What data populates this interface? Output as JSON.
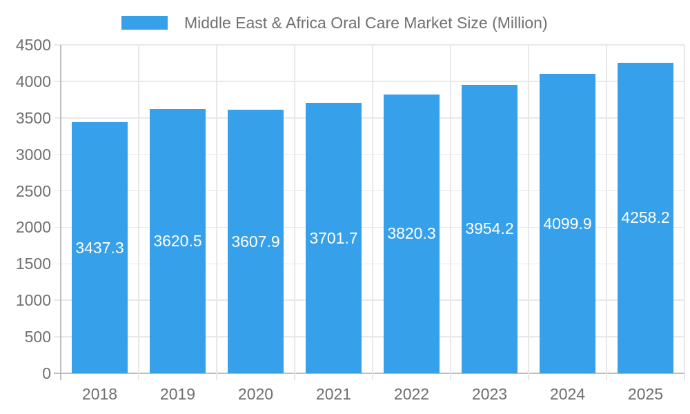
{
  "legend": {
    "label": "Middle East & Africa Oral Care Market Size (Million)"
  },
  "colors": {
    "bar": "#36A0EB",
    "grid": "#E8E8E8",
    "zero_line": "#BDBDBD",
    "tick_label": "#707070",
    "value_label": "#FFFFFF",
    "background": "#FFFFFF"
  },
  "chart_data": {
    "type": "bar",
    "title": "Middle East & Africa Oral Care Market Size (Million)",
    "categories": [
      "2018",
      "2019",
      "2020",
      "2021",
      "2022",
      "2023",
      "2024",
      "2025"
    ],
    "values": [
      3437.3,
      3620.5,
      3607.9,
      3701.7,
      3820.3,
      3954.2,
      4099.9,
      4258.2
    ],
    "value_labels": [
      "3437.3",
      "3620.5",
      "3607.9",
      "3701.7",
      "3820.3",
      "3954.2",
      "4099.9",
      "4258.2"
    ],
    "xlabel": "",
    "ylabel": "",
    "ylim": [
      0,
      4500
    ],
    "ytick_step": 500,
    "ytick_labels": [
      "0",
      "500",
      "1000",
      "1500",
      "2000",
      "2500",
      "3000",
      "3500",
      "4000",
      "4500"
    ],
    "grid": true,
    "legend_position": "top-center",
    "bar_label_position": "inside-center"
  }
}
